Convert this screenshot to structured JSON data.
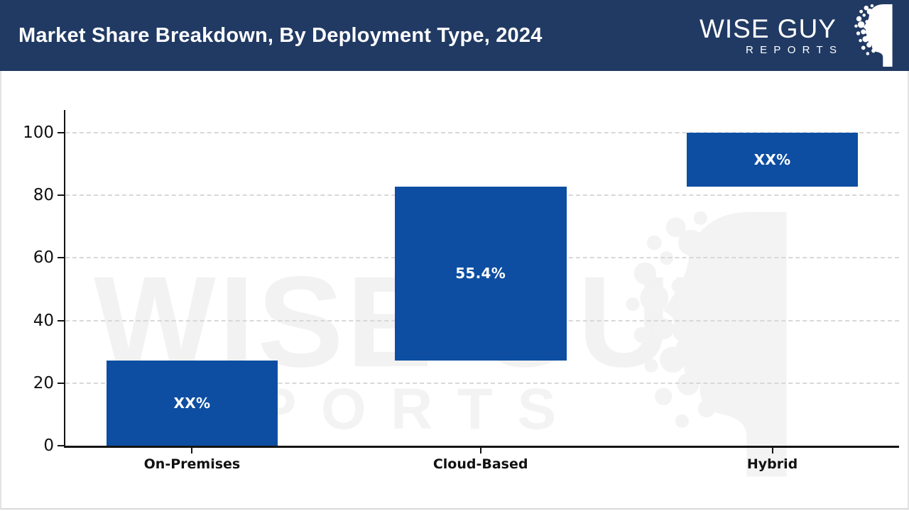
{
  "header": {
    "title": "Market Share Breakdown, By Deployment Type, 2024",
    "brand": {
      "line1": "WISE GUY",
      "line2": "REPORTS"
    }
  },
  "watermark": {
    "line1": "WISE GUY",
    "line2": "REPORTS"
  },
  "chart_data": {
    "type": "bar",
    "subtype": "waterfall",
    "title": "Market Share Breakdown, By Deployment Type, 2024",
    "categories": [
      "On-Premises",
      "Cloud-Based",
      "Hybrid"
    ],
    "segments": [
      {
        "category": "On-Premises",
        "start": 0,
        "end": 27.3,
        "value_label": "XX%"
      },
      {
        "category": "Cloud-Based",
        "start": 27.3,
        "end": 82.7,
        "value_label": "55.4%"
      },
      {
        "category": "Hybrid",
        "start": 82.7,
        "end": 100,
        "value_label": "XX%"
      }
    ],
    "xlabel": "",
    "ylabel": "",
    "ylim": [
      0,
      100
    ],
    "yticks": [
      0,
      20,
      40,
      60,
      80,
      100
    ],
    "grid": "horizontal-dashed",
    "legend": "none",
    "bar_color": "#0d4ea2",
    "bar_label_color": "#ffffff",
    "axis_color": "#141414",
    "grid_color": "#d8d8d8"
  },
  "colors": {
    "header_bg": "#213a63",
    "page_bg": "#ffffff",
    "watermark": "#f2f2f2"
  }
}
